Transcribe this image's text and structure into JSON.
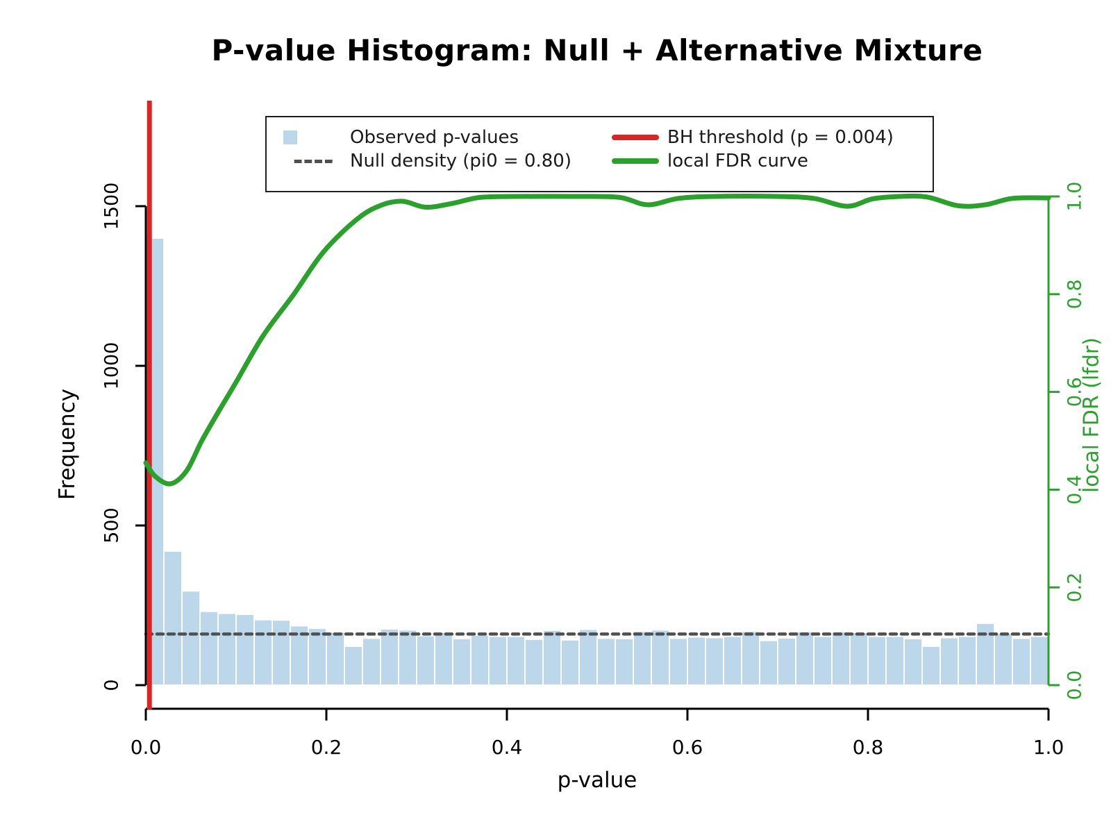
{
  "title": "P-value Histogram: Null + Alternative Mixture",
  "legend": {
    "items": [
      {
        "label": "Observed p-values",
        "marker": "square-icon",
        "color": "#BCD7E9"
      },
      {
        "label": "Null density (pi0 = 0.80)",
        "marker": "dashed-line-icon",
        "color": "#4F4F4F"
      },
      {
        "label": "BH threshold (p = 0.004)",
        "marker": "red-line-icon",
        "color": "#D62728"
      },
      {
        "label": "local FDR curve",
        "marker": "green-line-icon",
        "color": "#2CA02C"
      }
    ]
  },
  "colors": {
    "bar_fill": "#BCD7E9",
    "bar_edge": "#FFFFFF",
    "bh_threshold": "#D62728",
    "lfdr_curve": "#2CA02C",
    "null_density": "#4F4F4F",
    "axis": "#000000",
    "right_axis": "#2CA02C"
  },
  "chart_data": {
    "type": "bar",
    "title": "P-value Histogram: Null + Alternative Mixture",
    "xlabel": "p-value",
    "ylabel_left": "Frequency",
    "ylabel_right": "local FDR (lfdr)",
    "xlim": [
      0.0,
      1.0
    ],
    "ylim_left": [
      0,
      1500
    ],
    "ylim_right": [
      0.0,
      1.0
    ],
    "grid": false,
    "legend_position": "top-center",
    "x_ticks": [
      0.0,
      0.2,
      0.4,
      0.6,
      0.8,
      1.0
    ],
    "x_tick_labels": [
      "0.0",
      "0.2",
      "0.4",
      "0.6",
      "0.8",
      "1.0"
    ],
    "y_left_ticks": [
      0,
      500,
      1000,
      1500
    ],
    "y_left_tick_labels": [
      "0",
      "500",
      "1000",
      "1500"
    ],
    "y_right_ticks": [
      0.0,
      0.2,
      0.4,
      0.6,
      0.8,
      1.0
    ],
    "y_right_tick_labels": [
      "0.0",
      "0.2",
      "0.4",
      "0.6",
      "0.8",
      "1.0"
    ],
    "bin_start": 0.0,
    "bin_width": 0.02,
    "histogram_counts": [
      1400,
      420,
      295,
      231,
      225,
      222,
      205,
      204,
      186,
      178,
      167,
      122,
      147,
      176,
      173,
      155,
      166,
      146,
      157,
      153,
      153,
      144,
      172,
      142,
      175,
      147,
      146,
      169,
      173,
      147,
      151,
      149,
      153,
      169,
      140,
      148,
      168,
      153,
      168,
      165,
      153,
      153,
      146,
      122,
      149,
      153,
      194,
      162,
      147,
      153
    ],
    "null_density_level": 160,
    "pi0": 0.8,
    "bh_threshold_p": 0.004,
    "lfdr_curve": {
      "x": [
        0.0,
        0.01,
        0.027,
        0.045,
        0.062,
        0.08,
        0.1,
        0.13,
        0.164,
        0.197,
        0.235,
        0.262,
        0.285,
        0.31,
        0.34,
        0.37,
        0.41,
        0.48,
        0.525,
        0.556,
        0.59,
        0.63,
        0.7,
        0.74,
        0.777,
        0.805,
        0.835,
        0.865,
        0.9,
        0.93,
        0.96,
        1.0
      ],
      "y": [
        0.455,
        0.428,
        0.412,
        0.438,
        0.5,
        0.558,
        0.62,
        0.715,
        0.8,
        0.887,
        0.955,
        0.983,
        0.99,
        0.978,
        0.986,
        0.998,
        1.0,
        1.0,
        0.998,
        0.983,
        0.996,
        1.0,
        1.0,
        0.996,
        0.98,
        0.995,
        1.0,
        0.999,
        0.981,
        0.983,
        0.996,
        0.997
      ]
    }
  }
}
